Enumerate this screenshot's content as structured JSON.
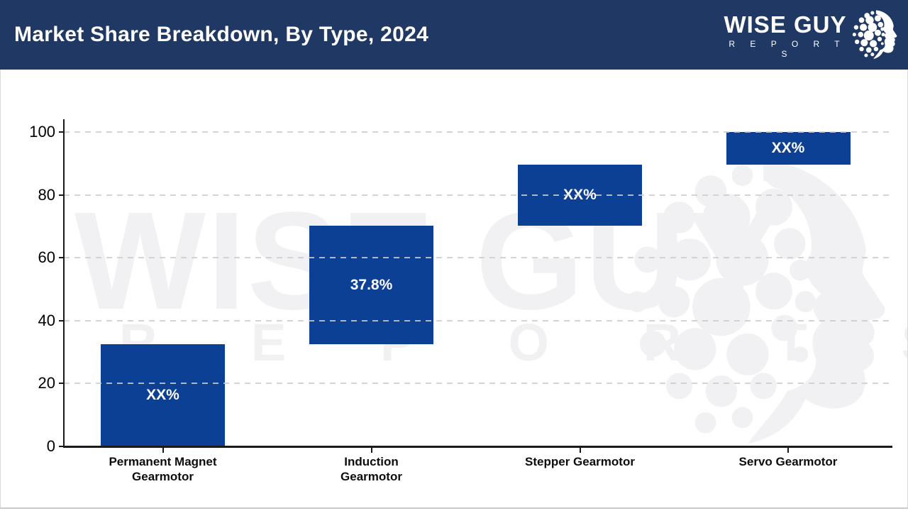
{
  "header": {
    "title": "Market Share Breakdown, By Type, 2024",
    "bg_color": "#1f3864",
    "logo": {
      "line1": "WISE GUY",
      "line2": "R E P O R T S"
    }
  },
  "watermark": {
    "line1": "WISE GUY",
    "line2": "R E P O R T S"
  },
  "chart_data": {
    "type": "bar",
    "subtype": "waterfall-floating-bars",
    "title": "Market Share Breakdown, By Type, 2024",
    "categories": [
      "Permanent Magnet Gearmotor",
      "Induction Gearmotor",
      "Stepper Gearmotor",
      "Servo Gearmotor"
    ],
    "categories_display": [
      [
        "Permanent Magnet",
        "Gearmotor"
      ],
      [
        "Induction",
        "Gearmotor"
      ],
      [
        "Stepper Gearmotor"
      ],
      [
        "Servo Gearmotor"
      ]
    ],
    "segments": [
      {
        "category": "Permanent Magnet Gearmotor",
        "start": 0,
        "end": 32.4,
        "label": "XX%"
      },
      {
        "category": "Induction Gearmotor",
        "start": 32.4,
        "end": 70.2,
        "label": "37.8%"
      },
      {
        "category": "Stepper Gearmotor",
        "start": 70.2,
        "end": 89.7,
        "label": "XX%"
      },
      {
        "category": "Servo Gearmotor",
        "start": 89.7,
        "end": 100,
        "label": "XX%"
      }
    ],
    "y_ticks": [
      0,
      20,
      40,
      60,
      80,
      100
    ],
    "ylim": [
      0,
      104
    ],
    "grid": "horizontal-dashed",
    "legend": "none",
    "bar_color": "#0c4094",
    "bar_label_color": "#ffffff"
  }
}
